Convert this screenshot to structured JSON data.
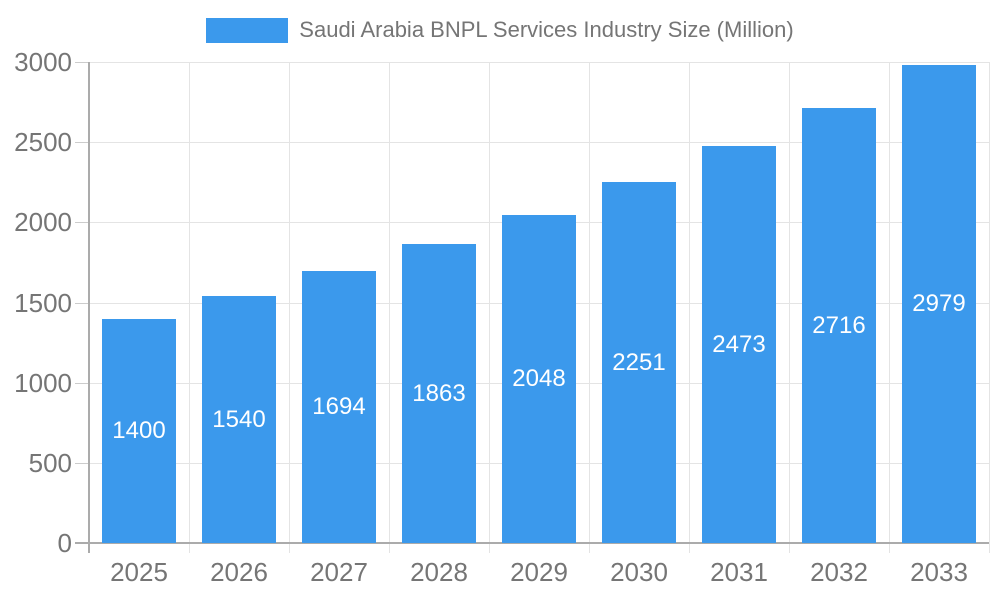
{
  "chart_data": {
    "type": "bar",
    "title": "Saudi Arabia BNPL Services Industry Size (Million)",
    "categories": [
      "2025",
      "2026",
      "2027",
      "2028",
      "2029",
      "2030",
      "2031",
      "2032",
      "2033"
    ],
    "values": [
      1400,
      1540,
      1694,
      1863,
      2048,
      2251,
      2473,
      2716,
      2979
    ],
    "value_labels": [
      "1400",
      "1540",
      "1694",
      "1863",
      "2048",
      "2251",
      "2473",
      "2716",
      "2979"
    ],
    "xlabel": "",
    "ylabel": "",
    "ylim": [
      0,
      3000
    ],
    "yticks": [
      0,
      500,
      1000,
      1500,
      2000,
      2500,
      3000
    ],
    "grid": true,
    "legend_position": "top",
    "colors": {
      "bar": "#3B99EC",
      "value_label": "#ffffff",
      "axis_text": "#757575",
      "legend_text": "#757575",
      "axis_line": "#ababab",
      "gridline": "#e4e4e4",
      "tick": "#cccccc",
      "background": "#ffffff"
    }
  }
}
